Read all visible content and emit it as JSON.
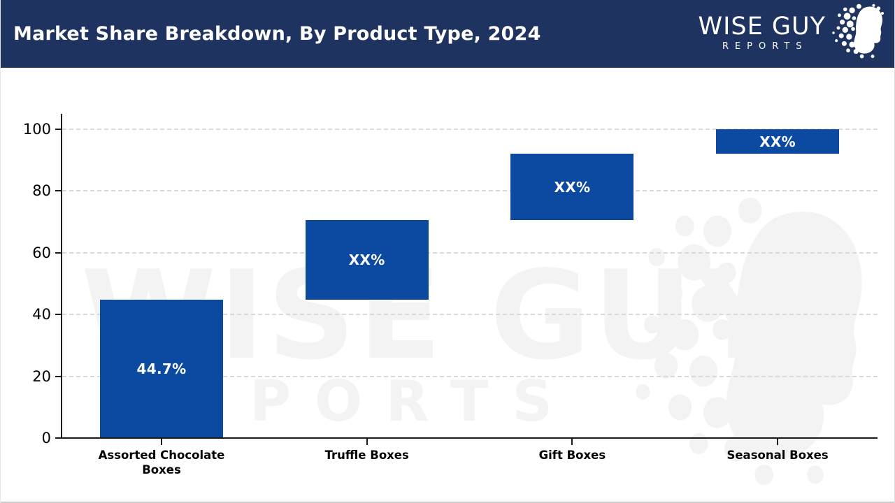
{
  "header": {
    "title": "Market Share Breakdown, By Product Type, 2024",
    "bg_color": "#1f3361",
    "logo": {
      "wordmark": "WISE GUY",
      "subtext": "REPORTS"
    }
  },
  "watermark": {
    "line1": "WISE GUY",
    "line2": "REPORTS"
  },
  "chart_data": {
    "type": "bar",
    "subtype": "waterfall",
    "title": "Market Share Breakdown, By Product Type, 2024",
    "xlabel": "",
    "ylabel": "",
    "categories": [
      "Assorted Chocolate Boxes",
      "Truffle Boxes",
      "Gift Boxes",
      "Seasonal Boxes"
    ],
    "bars": [
      {
        "category": "Assorted Chocolate Boxes",
        "start": 0,
        "end": 44.7,
        "size": 44.7,
        "label": "44.7%"
      },
      {
        "category": "Truffle Boxes",
        "start": 44.7,
        "end": 70.5,
        "size": 25.8,
        "label": "XX%"
      },
      {
        "category": "Gift Boxes",
        "start": 70.5,
        "end": 92.0,
        "size": 21.5,
        "label": "XX%"
      },
      {
        "category": "Seasonal Boxes",
        "start": 92.0,
        "end": 100.0,
        "size": 8.0,
        "label": "XX%"
      }
    ],
    "value_unit": "%",
    "ylim": [
      0,
      105
    ],
    "yticks": [
      0,
      20,
      40,
      60,
      80,
      100
    ],
    "grid": "horizontal-dashed",
    "legend": "none",
    "bar_color": "#0b4aa0",
    "bar_label_color": "#ffffff",
    "axis_color": "#1a1a1a",
    "gridline_color": "#d9d9d9"
  }
}
